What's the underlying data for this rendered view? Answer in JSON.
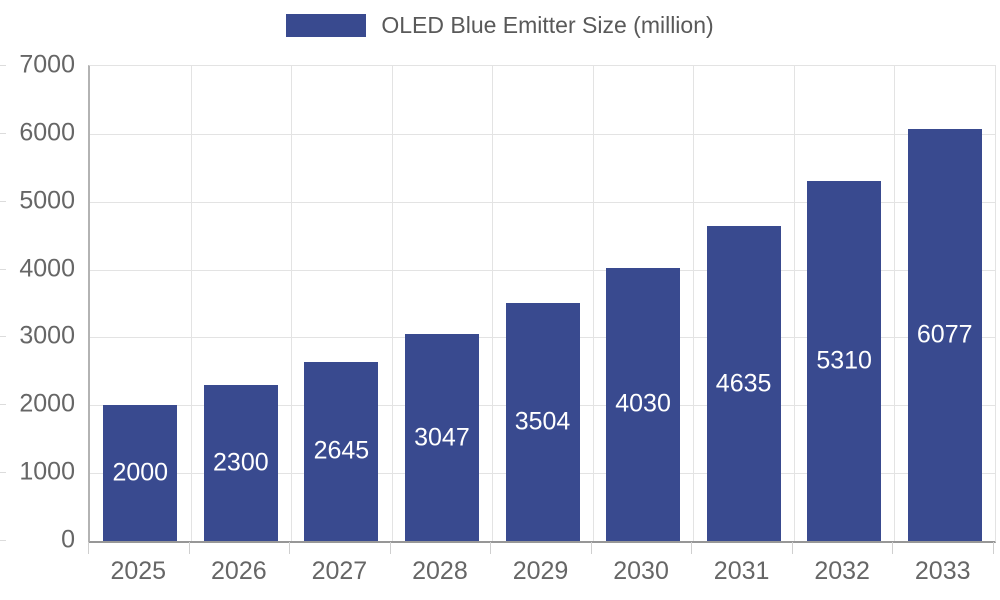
{
  "legend": {
    "label": "OLED Blue Emitter Size (million)"
  },
  "chart_data": {
    "type": "bar",
    "title": "OLED Blue Emitter Size (million)",
    "series_name": "OLED Blue Emitter Size (million)",
    "categories": [
      "2025",
      "2026",
      "2027",
      "2028",
      "2029",
      "2030",
      "2031",
      "2032",
      "2033"
    ],
    "values": [
      2000,
      2300,
      2645,
      3047,
      3504,
      4030,
      4635,
      5310,
      6077
    ],
    "value_labels": [
      "2000",
      "2300",
      "2645",
      "3047",
      "3504",
      "4030",
      "4635",
      "5310",
      "6077"
    ],
    "xlabel": "",
    "ylabel": "",
    "ylim": [
      0,
      7000
    ],
    "yticks": [
      0,
      1000,
      2000,
      3000,
      4000,
      5000,
      6000,
      7000
    ],
    "ytick_labels": [
      "0",
      "1000",
      "2000",
      "3000",
      "4000",
      "5000",
      "6000",
      "7000"
    ],
    "grid": true,
    "legend_position": "top",
    "colors": {
      "bar_fill": "#394a8f",
      "value_label": "#ffffff",
      "axis_label": "#666666",
      "legend_text": "#595959",
      "gridline": "#e3e3e3",
      "axis_line": "#979797",
      "background": "#ffffff"
    }
  }
}
